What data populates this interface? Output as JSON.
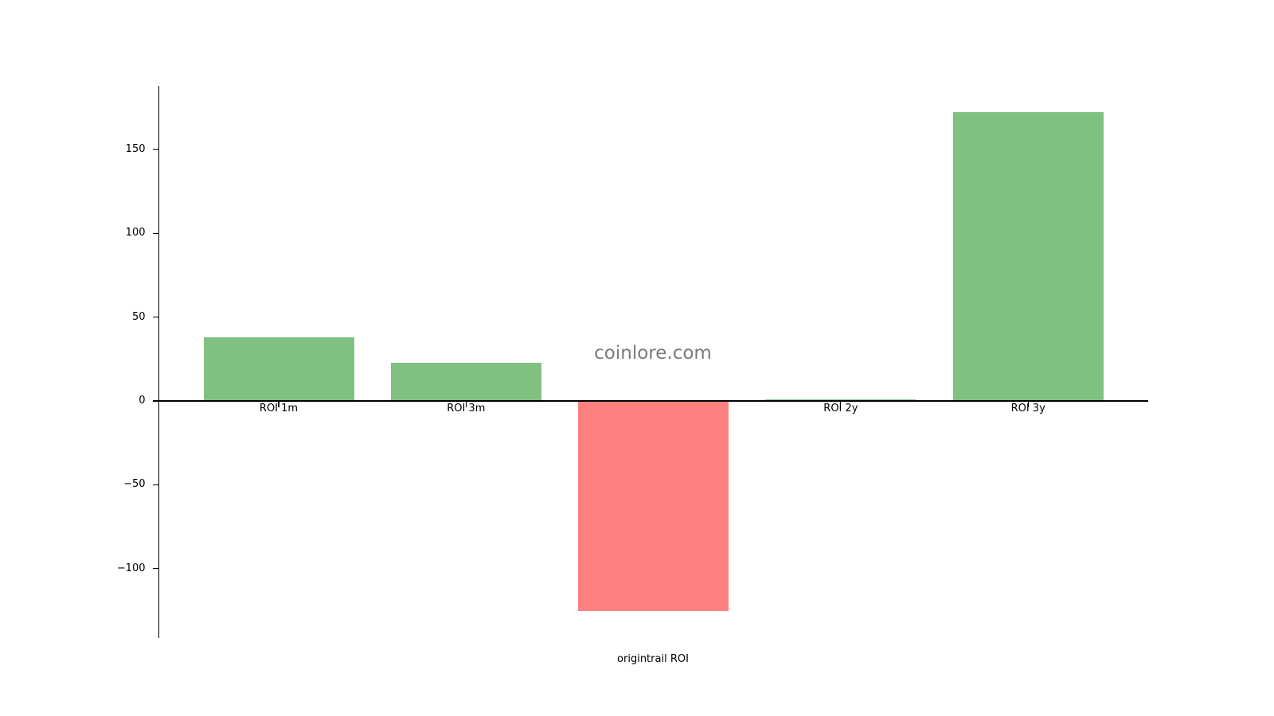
{
  "page": {
    "background": "#ffffff"
  },
  "watermark": {
    "text": "coinlore.com",
    "color": "#7a7a7a"
  },
  "chart_data": {
    "type": "bar",
    "title": "",
    "xlabel": "origintrail ROI",
    "ylabel": "",
    "categories": [
      "ROI 1m",
      "ROI 3m",
      "",
      "ROI 2y",
      "ROI 3y"
    ],
    "values": [
      38,
      23,
      -125,
      1,
      172
    ],
    "yticks": [
      150,
      100,
      50,
      0,
      -50,
      -100
    ],
    "ytick_labels": [
      "150",
      "100",
      "50",
      "0",
      "−50",
      "−100"
    ],
    "ylim": [
      -141,
      188
    ],
    "grid": false,
    "legend": false,
    "positive_color": "#80C080",
    "negative_color": "#FF8080",
    "axis_color": "#000000",
    "tick_label_color": "#000000"
  }
}
